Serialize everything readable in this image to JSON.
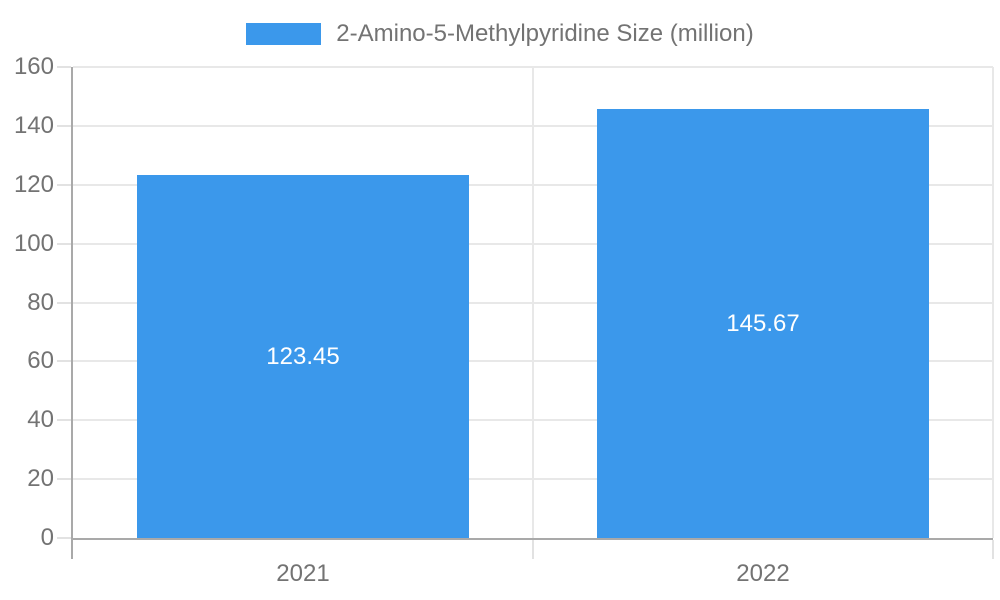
{
  "legend": {
    "items": [
      {
        "label": "2-Amino-5-Methylpyridine Size (million)",
        "color": "#3B98EB"
      }
    ]
  },
  "chart_data": {
    "type": "bar",
    "title": "",
    "categories": [
      "2021",
      "2022"
    ],
    "series": [
      {
        "name": "2-Amino-5-Methylpyridine Size (million)",
        "values": [
          123.45,
          145.67
        ],
        "data_labels": [
          "123.45",
          "145.67"
        ],
        "color": "#3B98EB"
      }
    ],
    "xlabel": "",
    "ylabel": "",
    "ylim": [
      0,
      160
    ],
    "ytick_step": 20,
    "ytick_labels": [
      "0",
      "20",
      "40",
      "60",
      "80",
      "100",
      "120",
      "140",
      "160"
    ],
    "grid": true,
    "legend_position": "top"
  },
  "colors": {
    "bar": "#3B98EB",
    "axis": "#A9A9A9",
    "gridline": "#E8E8E8",
    "tick": "#E2E2E2",
    "label_text": "#737373",
    "data_label_text": "#FFFFFF",
    "background": "#FFFFFF"
  }
}
